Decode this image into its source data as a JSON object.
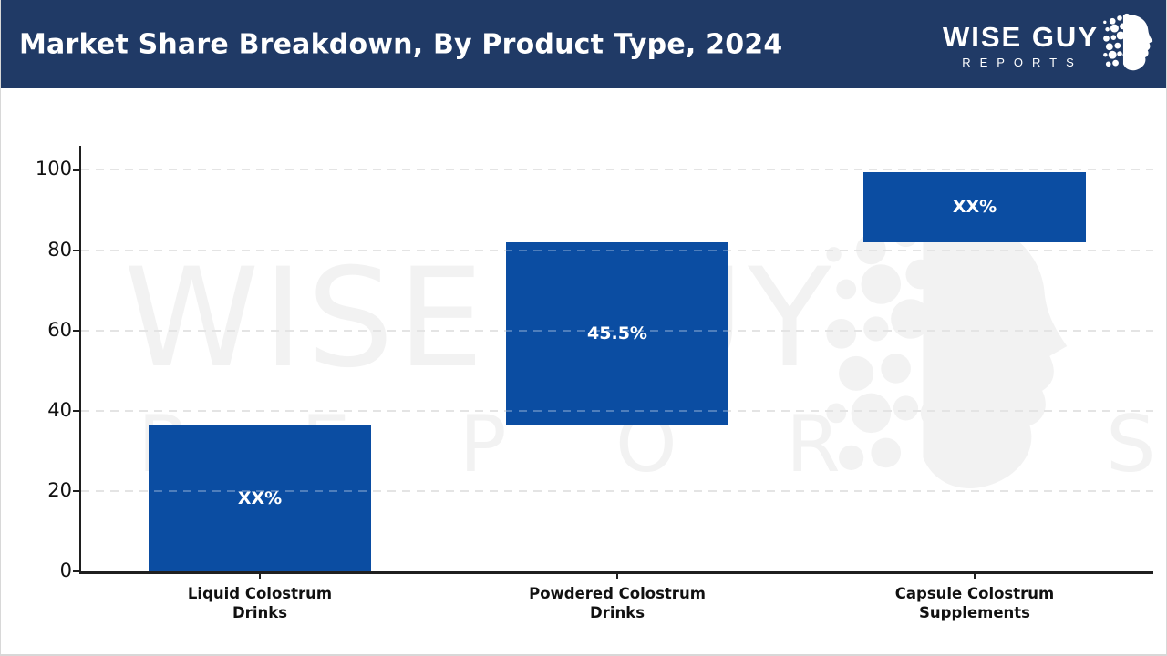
{
  "header": {
    "title": "Market Share Breakdown, By Product Type, 2024",
    "bg_color": "#203a66",
    "logo": {
      "line1": "WISE GUY",
      "line2": "REPORTS"
    }
  },
  "watermark": {
    "line1": "WISE GUY",
    "line2": "R E P O R T S"
  },
  "chart_data": {
    "type": "bar",
    "variant": "floating-segment-waterfall",
    "title": "Market Share Breakdown, By Product Type, 2024",
    "categories": [
      "Liquid Colostrum Drinks",
      "Powdered Colostrum Drinks",
      "Capsule Colostrum Supplements"
    ],
    "category_labels_2line": [
      [
        "Liquid Colostrum",
        "Drinks"
      ],
      [
        "Powdered Colostrum",
        "Drinks"
      ],
      [
        "Capsule Colostrum",
        "Supplements"
      ]
    ],
    "segments": [
      {
        "start": 0,
        "end": 36.4,
        "label": "XX%"
      },
      {
        "start": 36.4,
        "end": 81.9,
        "label": "45.5%"
      },
      {
        "start": 81.9,
        "end": 99.5,
        "label": "XX%"
      }
    ],
    "values_shown": [
      "XX%",
      "45.5%",
      "XX%"
    ],
    "yticks": [
      0,
      20,
      40,
      60,
      80,
      100
    ],
    "ylim": [
      0,
      106
    ],
    "grid": {
      "axis": "y",
      "style": "dashed",
      "color": "#d9d9d9"
    },
    "legend": "none",
    "bar_color": "#0b4da2",
    "bar_label_color": "#ffffff",
    "axis_color": "#1f1f1f"
  }
}
